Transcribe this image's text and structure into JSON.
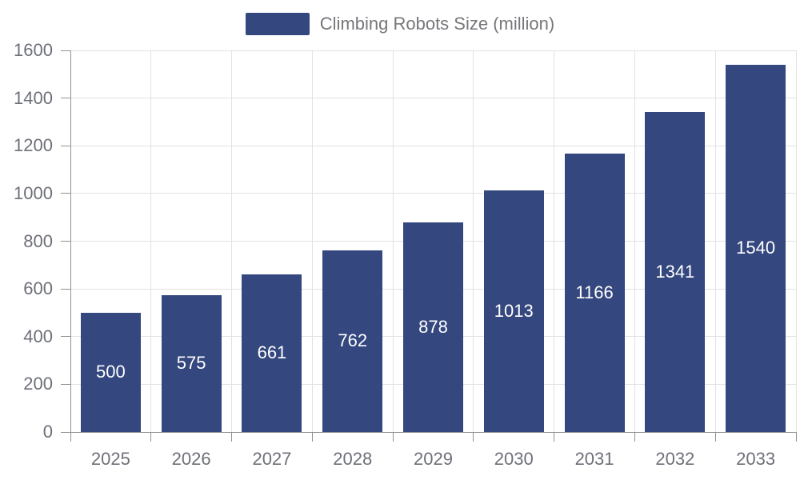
{
  "chart_data": {
    "type": "bar",
    "title": "Climbing Robots Size (million)",
    "legend": {
      "label": "Climbing Robots Size (million)",
      "position": "top-center"
    },
    "categories": [
      "2025",
      "2026",
      "2027",
      "2028",
      "2029",
      "2030",
      "2031",
      "2032",
      "2033"
    ],
    "series": [
      {
        "name": "Climbing Robots Size (million)",
        "values": [
          500,
          575,
          661,
          762,
          878,
          1013,
          1166,
          1341,
          1540
        ]
      }
    ],
    "data_labels": [
      "500",
      "575",
      "661",
      "762",
      "878",
      "1013",
      "1166",
      "1341",
      "1540"
    ],
    "xlabel": "",
    "ylabel": "",
    "ylim": [
      0,
      1600
    ],
    "y_ticks": [
      0,
      200,
      400,
      600,
      800,
      1000,
      1200,
      1400,
      1600
    ],
    "grid": true,
    "colors": {
      "bar": "#34477E",
      "bar_label_text": "#FFFFFF",
      "axis_line": "#919191",
      "grid_line": "#E2E2E2",
      "tick_label": "#6E7079",
      "legend_text": "#76777B",
      "background": "#FFFFFF"
    }
  }
}
